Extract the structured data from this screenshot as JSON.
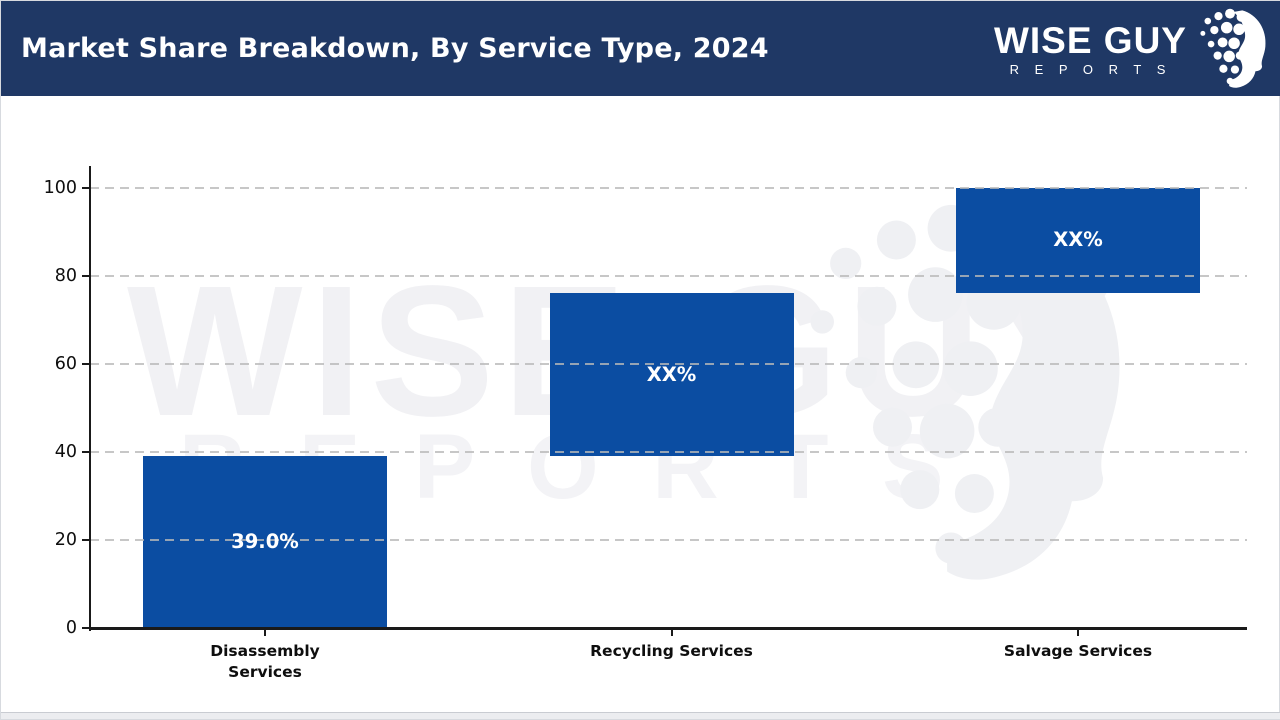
{
  "header": {
    "title": "Market Share Breakdown, By Service Type, 2024",
    "logo_line1": "WISE GUY",
    "logo_line2": "R E P O R T S"
  },
  "watermark": {
    "line1": "WISE GUY",
    "line2": "R E P O R T S"
  },
  "colors": {
    "header_bg": "#1f3865",
    "bar": "#0b4da2",
    "title_text": "#ffffff",
    "axis": "#1a1a1a",
    "grid": "#c9c9c9",
    "bar_label_text": "#ffffff",
    "footer_strip": "#ecedf0"
  },
  "chart_data": {
    "type": "bar",
    "subtype": "waterfall",
    "title": "Market Share Breakdown, By Service Type, 2024",
    "categories": [
      "Disassembly\nServices",
      "Recycling Services",
      "Salvage Services"
    ],
    "bars": [
      {
        "category": "Disassembly Services",
        "start": 0,
        "end": 39,
        "value": 39.0,
        "label": "39.0%"
      },
      {
        "category": "Recycling Services",
        "start": 39,
        "end": 76,
        "value": 37.0,
        "label": "XX%"
      },
      {
        "category": "Salvage Services",
        "start": 76,
        "end": 100,
        "value": 24.0,
        "label": "XX%"
      }
    ],
    "ylim": [
      0,
      100
    ],
    "yticks": [
      0,
      20,
      40,
      60,
      80,
      100
    ],
    "grid": "horizontal-dashed",
    "legend": "none",
    "xlabel": "",
    "ylabel": ""
  }
}
